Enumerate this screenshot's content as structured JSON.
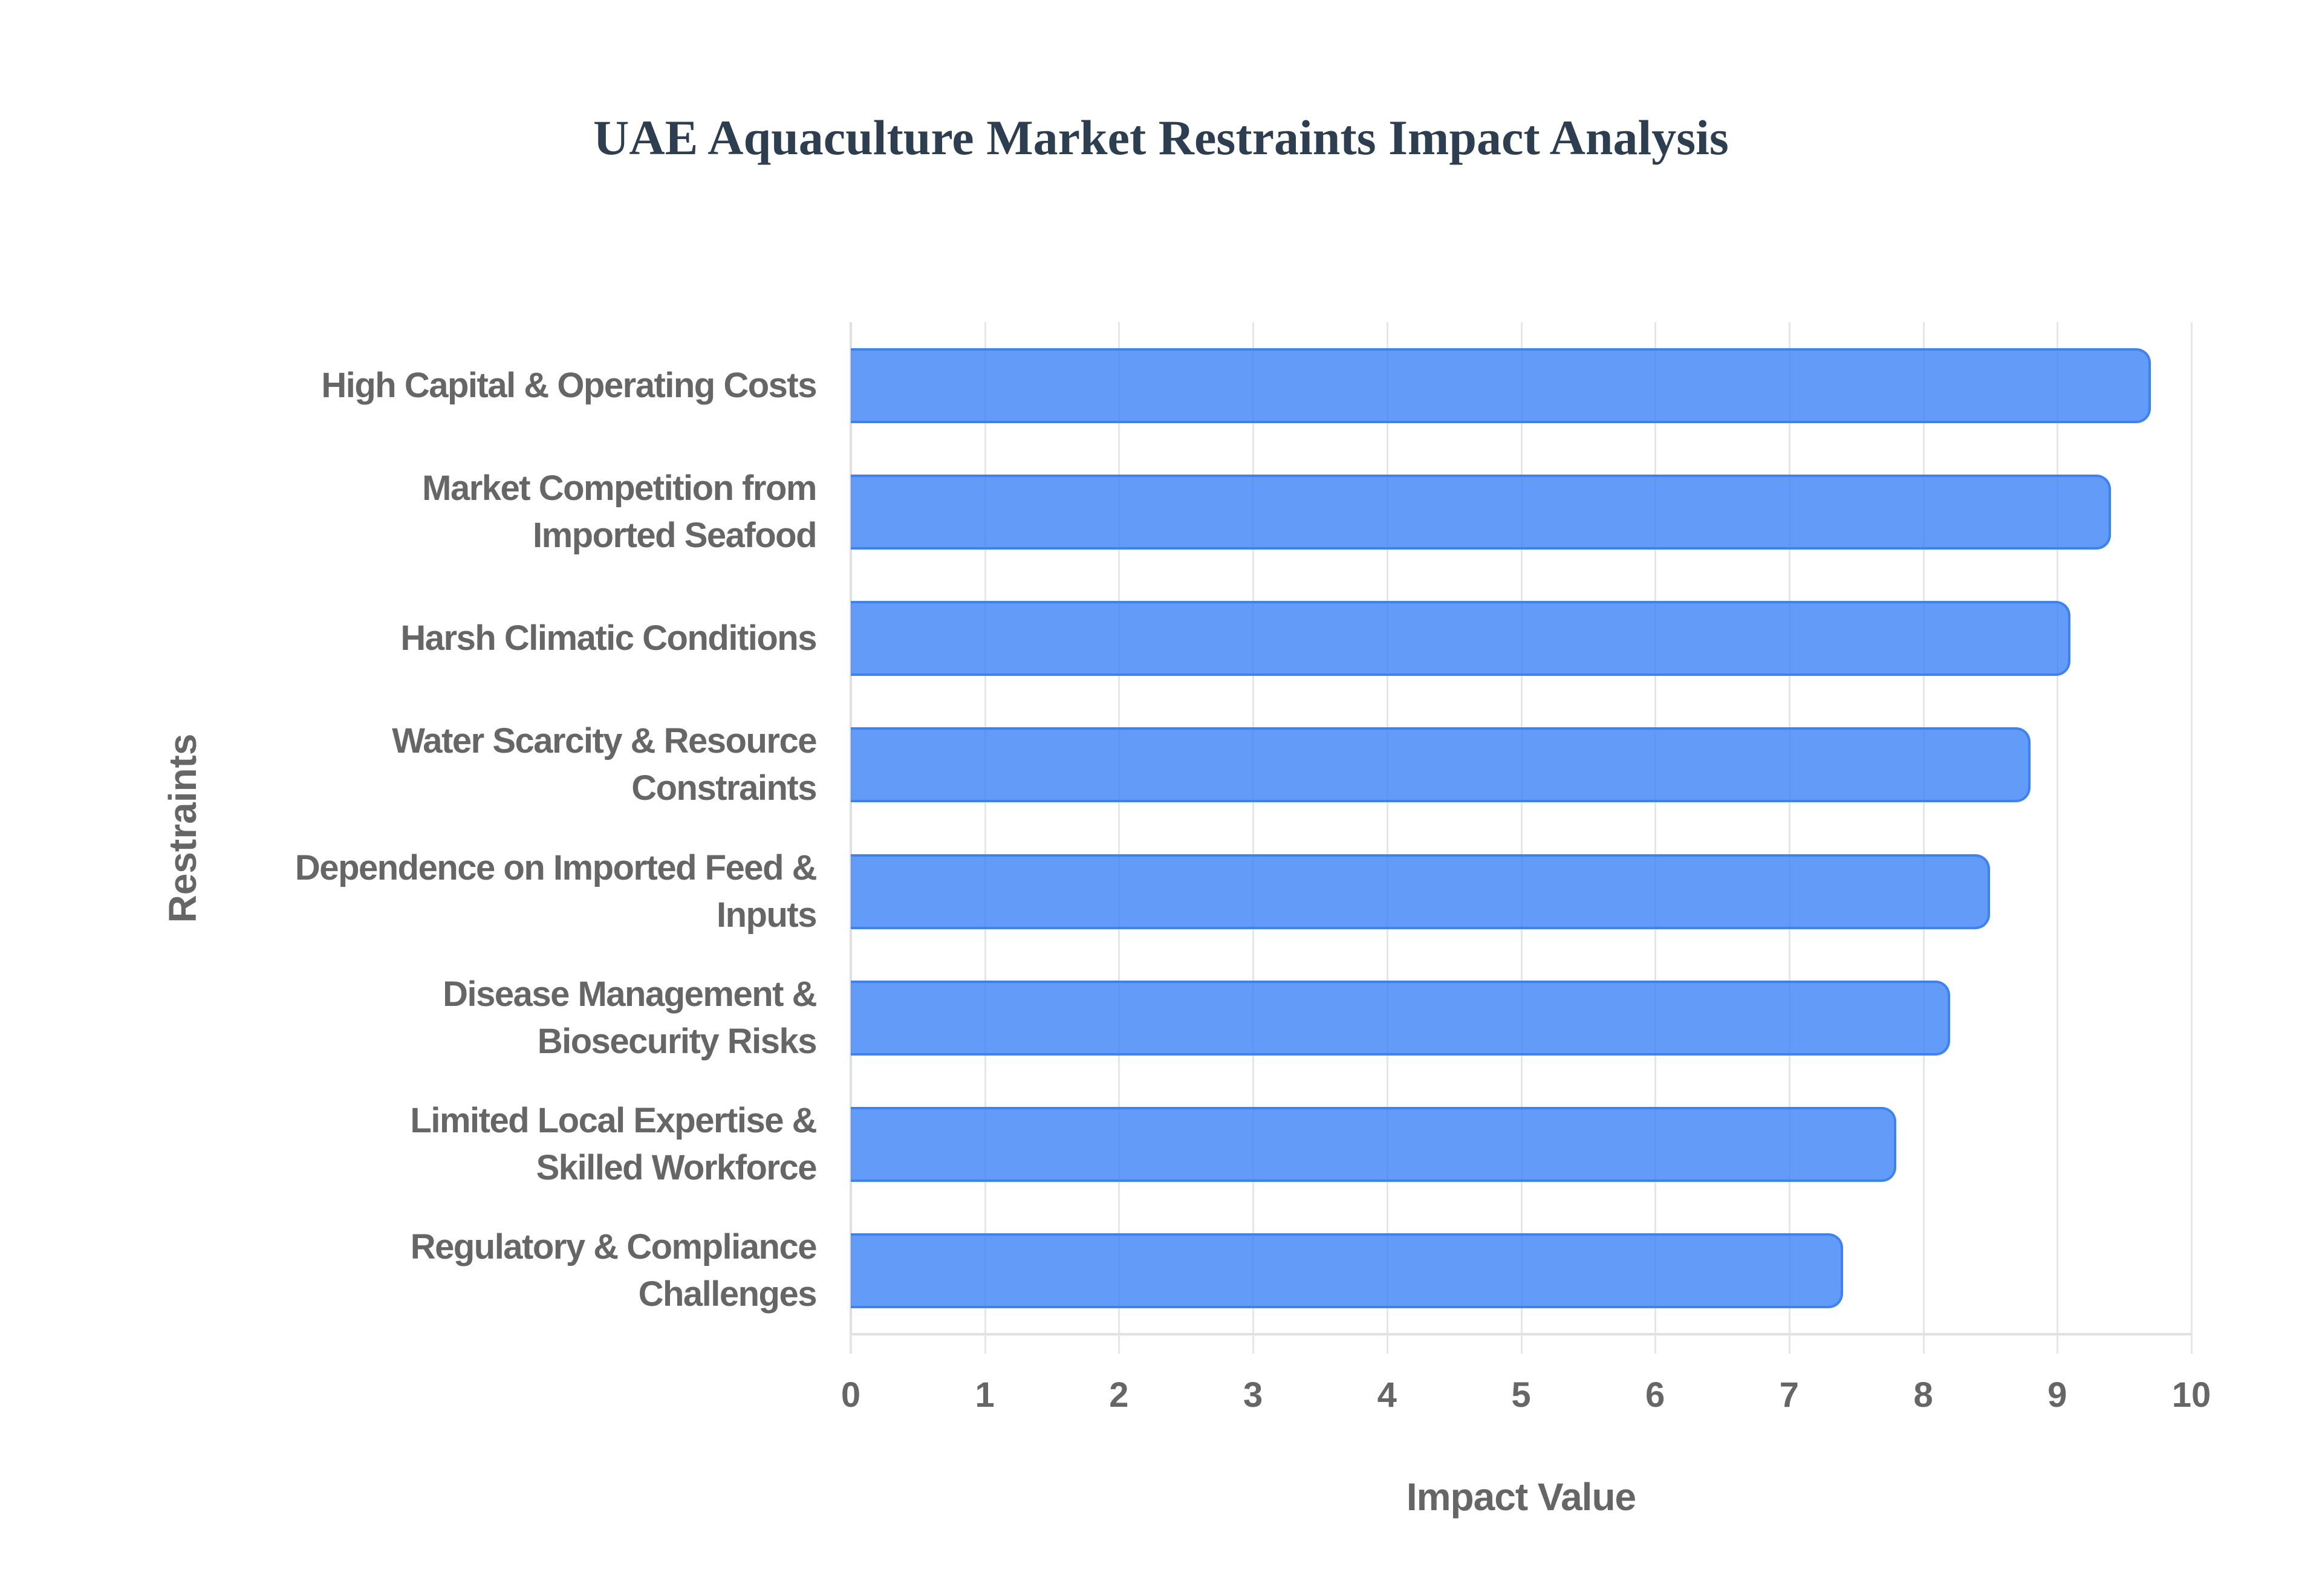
{
  "title": "UAE Aquaculture Market Restraints Impact Analysis",
  "colors": {
    "bar_fill": "rgba(59,130,246,0.8)",
    "bar_border": "#3b82f6",
    "title": "#2c3e50",
    "axis_text": "#666666",
    "grid": "#e6e6e6"
  },
  "chart_data": {
    "type": "bar",
    "orientation": "horizontal",
    "title": "UAE Aquaculture Market Restraints Impact Analysis",
    "xlabel": "Impact Value",
    "ylabel": "Restraints",
    "xlim": [
      0,
      10
    ],
    "x_ticks": [
      "0",
      "1",
      "2",
      "3",
      "4",
      "5",
      "6",
      "7",
      "8",
      "9",
      "10"
    ],
    "grid": true,
    "legend": null,
    "categories": [
      "High Capital & Operating Costs",
      "Market Competition from Imported Seafood",
      "Harsh Climatic Conditions",
      "Water Scarcity & Resource Constraints",
      "Dependence on Imported Feed & Inputs",
      "Disease Management & Biosecurity Risks",
      "Limited Local Expertise & Skilled Workforce",
      "Regulatory & Compliance Challenges"
    ],
    "category_label_lines": [
      [
        "High Capital & Operating Costs"
      ],
      [
        "Market Competition from",
        "Imported Seafood"
      ],
      [
        "Harsh Climatic Conditions"
      ],
      [
        "Water Scarcity & Resource",
        "Constraints"
      ],
      [
        "Dependence on Imported Feed &",
        "Inputs"
      ],
      [
        "Disease Management &",
        "Biosecurity Risks"
      ],
      [
        "Limited Local Expertise &",
        "Skilled Workforce"
      ],
      [
        "Regulatory & Compliance",
        "Challenges"
      ]
    ],
    "values": [
      9.7,
      9.4,
      9.1,
      8.8,
      8.5,
      8.2,
      7.8,
      7.4
    ]
  }
}
